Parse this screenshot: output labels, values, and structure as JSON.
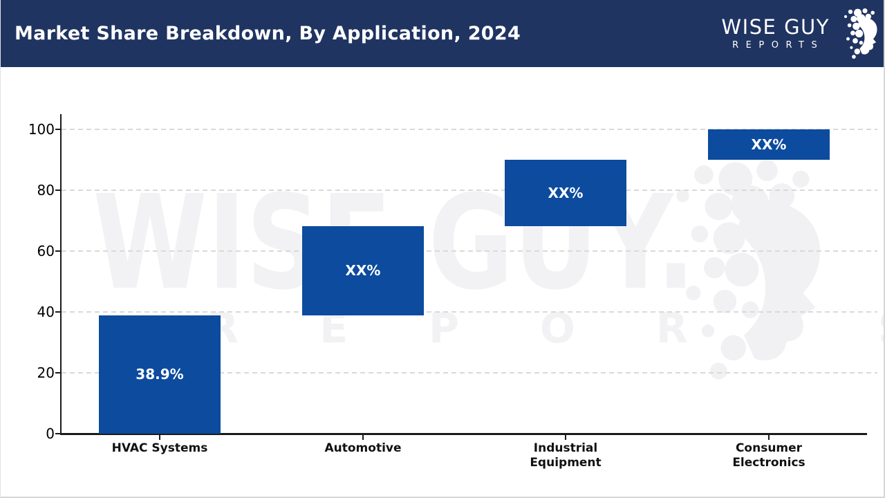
{
  "header": {
    "title": "Market Share Breakdown, By Application, 2024",
    "logo": {
      "line1": "WISE GUY",
      "line2": "REPORTS"
    }
  },
  "watermark": {
    "line1": "WISE GUY.",
    "line2": "R E P O R T S"
  },
  "colors": {
    "header_bg": "#1f3461",
    "bar": "#0c4b9e",
    "bar_label": "#ffffff",
    "grid": "#d9d9d9",
    "axis": "#1a1a1a",
    "watermark": "#f2f2f4"
  },
  "chart_data": {
    "type": "bar",
    "subtype": "waterfall",
    "title": "Market Share Breakdown, By Application, 2024",
    "categories": [
      "HVAC Systems",
      "Automotive",
      "Industrial Equipment",
      "Consumer Electronics"
    ],
    "segments": [
      {
        "category": "HVAC Systems",
        "start": 0,
        "end": 38.9,
        "label": "38.9%"
      },
      {
        "category": "Automotive",
        "start": 38.9,
        "end": 68.2,
        "label": "XX%"
      },
      {
        "category": "Industrial Equipment",
        "start": 68.2,
        "end": 90,
        "label": "XX%"
      },
      {
        "category": "Consumer Electronics",
        "start": 90,
        "end": 100,
        "label": "XX%"
      }
    ],
    "xlabel": "",
    "ylabel": "",
    "ylim": [
      0,
      100
    ],
    "yticks": [
      0,
      20,
      40,
      60,
      80,
      100
    ],
    "grid": "horizontal-dashed",
    "legend": "none",
    "bar_color": "#0c4b9e",
    "bar_label_color": "#ffffff"
  }
}
